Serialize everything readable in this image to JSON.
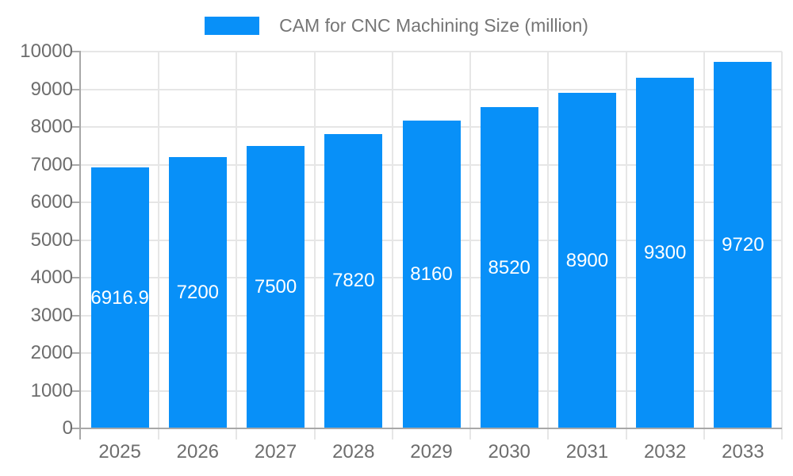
{
  "legend": {
    "label": "CAM for CNC Machining Size (million)"
  },
  "colors": {
    "bar": "#0890f8",
    "grid": "#e6e6e6",
    "axis": "#a8a8a8",
    "tick_label": "#6d6d6d",
    "legend_label": "#757575",
    "value_label": "#ffffff"
  },
  "chart_data": {
    "type": "bar",
    "title": "CAM for CNC Machining Size (million)",
    "categories": [
      "2025",
      "2026",
      "2027",
      "2028",
      "2029",
      "2030",
      "2031",
      "2032",
      "2033"
    ],
    "series": [
      {
        "name": "CAM for CNC Machining Size (million)",
        "values": [
          6916.9,
          7200,
          7500,
          7820,
          8160,
          8520,
          8900,
          9300,
          9720
        ]
      }
    ],
    "bar_labels": [
      "6916.9",
      "7200",
      "7500",
      "7820",
      "8160",
      "8520",
      "8900",
      "9300",
      "9720"
    ],
    "xlabel": "",
    "ylabel": "",
    "ylim": [
      0,
      10000
    ],
    "ytick_step": 1000,
    "ytick_labels": [
      "0",
      "1000",
      "2000",
      "3000",
      "4000",
      "5000",
      "6000",
      "7000",
      "8000",
      "9000",
      "10000"
    ],
    "grid": true,
    "legend_position": "top"
  }
}
